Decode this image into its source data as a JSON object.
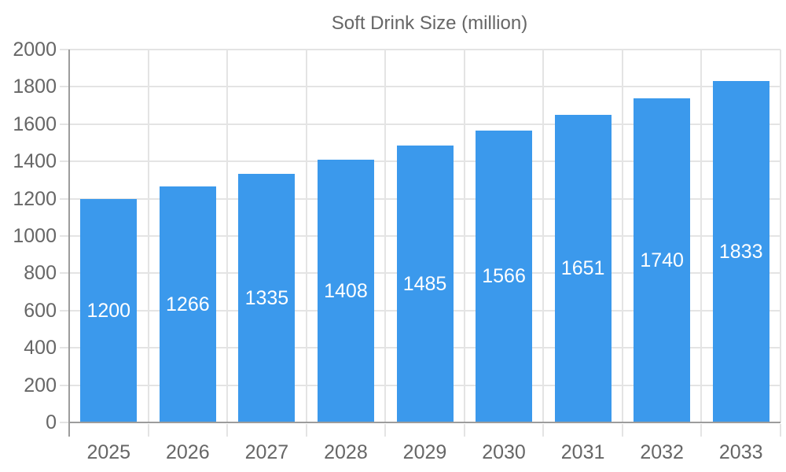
{
  "chart_data": {
    "type": "bar",
    "title": "",
    "legend": {
      "label": "Soft Drink Size (million)",
      "position": "top"
    },
    "categories": [
      "2025",
      "2026",
      "2027",
      "2028",
      "2029",
      "2030",
      "2031",
      "2032",
      "2033"
    ],
    "series": [
      {
        "name": "Soft Drink Size (million)",
        "values": [
          1200,
          1266,
          1335,
          1408,
          1485,
          1566,
          1651,
          1740,
          1833
        ]
      }
    ],
    "data_labels": [
      "1200",
      "1266",
      "1335",
      "1408",
      "1485",
      "1566",
      "1651",
      "1740",
      "1833"
    ],
    "xlabel": "",
    "ylabel": "",
    "ylim": [
      0,
      2000
    ],
    "yticks": [
      0,
      200,
      400,
      600,
      800,
      1000,
      1200,
      1400,
      1600,
      1800,
      2000
    ],
    "grid": true,
    "legend_position": "top-center"
  },
  "colors": {
    "bar": "#3B99EC",
    "grid": "#E4E4E4",
    "axis": "#9C9C9C",
    "tick_text": "#666666",
    "legend_text": "#666666",
    "value_text": "#FFFFFF"
  }
}
